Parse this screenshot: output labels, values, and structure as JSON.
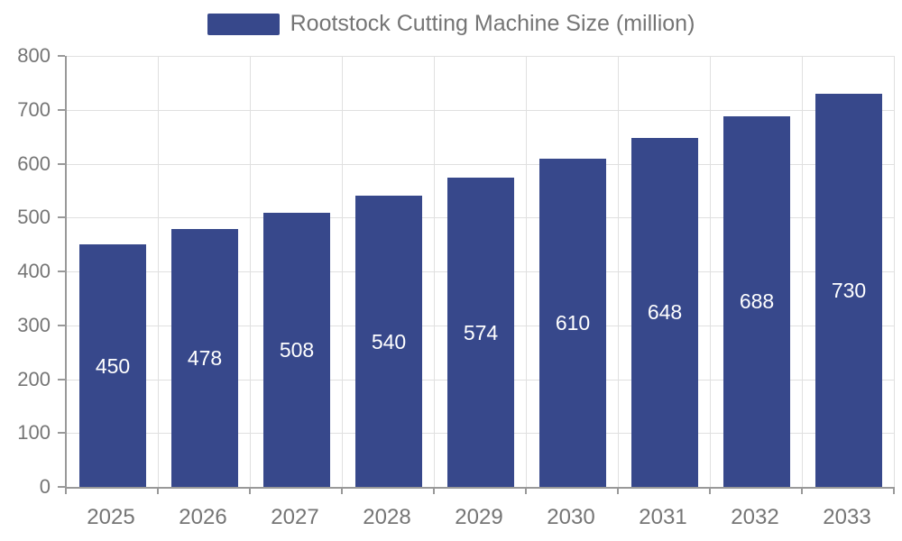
{
  "chart_data": {
    "type": "bar",
    "legend": "Rootstock Cutting Machine Size (million)",
    "categories": [
      "2025",
      "2026",
      "2027",
      "2028",
      "2029",
      "2030",
      "2031",
      "2032",
      "2033"
    ],
    "values": [
      450,
      478,
      508,
      540,
      574,
      610,
      648,
      688,
      730
    ],
    "xlabel": "",
    "ylabel": "",
    "ylim": [
      0,
      800
    ],
    "ytick_step": 100,
    "grid": true,
    "legend_position": "top-center",
    "colors": {
      "bar": "#37488b",
      "bar_value_text": "#ffffff",
      "axis_text": "#757575",
      "legend_text": "#757575",
      "gridline": "#e0e0e0",
      "axis_line": "#999999"
    }
  }
}
